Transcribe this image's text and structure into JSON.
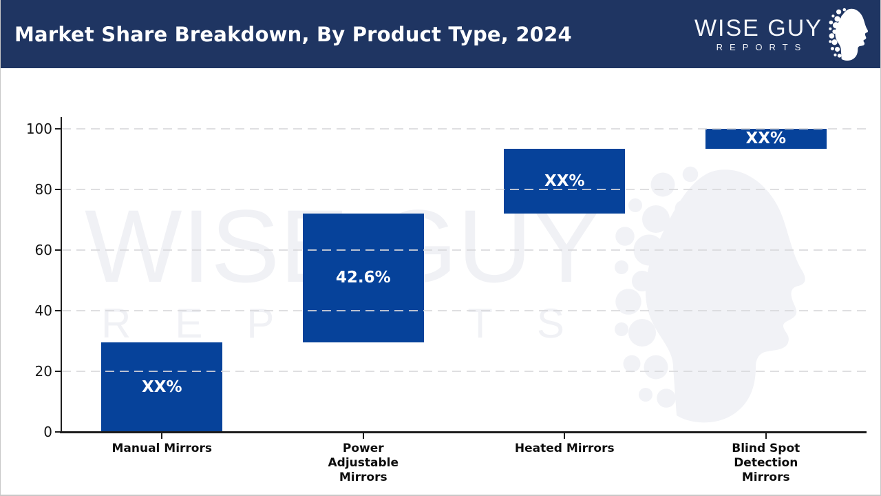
{
  "header": {
    "title": "Market Share Breakdown, By Product Type, 2024",
    "background_color": "#1f3562",
    "logo": {
      "wordmark": "WISE GUY",
      "subtitle": "REPORTS",
      "face_icon": "dotted-head-profile"
    }
  },
  "watermark": {
    "line1": "WISE GUY",
    "line2": "REPORTS",
    "face_icon": "dotted-head-profile",
    "color": "#f0f1f5"
  },
  "chart_data": {
    "type": "bar",
    "subtype": "floating-waterfall",
    "title": "Market Share Breakdown, By Product Type, 2024",
    "xlabel": "",
    "ylabel": "",
    "categories": [
      "Manual Mirrors",
      "Power Adjustable Mirrors",
      "Heated Mirrors",
      "Blind Spot Detection Mirrors"
    ],
    "segments": [
      {
        "category": "Manual Mirrors",
        "start": 0,
        "end": 29.5,
        "label": "XX%"
      },
      {
        "category": "Power Adjustable Mirrors",
        "start": 29.5,
        "end": 72.1,
        "label": "42.6%",
        "value": 42.6
      },
      {
        "category": "Heated Mirrors",
        "start": 72.1,
        "end": 93.3,
        "label": "XX%"
      },
      {
        "category": "Blind Spot Detection Mirrors",
        "start": 93.3,
        "end": 100,
        "label": "XX%"
      }
    ],
    "y_ticks": [
      0,
      20,
      40,
      60,
      80,
      100
    ],
    "ylim": [
      0,
      104
    ],
    "bar_color": "#06429a",
    "label_color": "#ffffff",
    "grid": true,
    "grid_style": "dashed",
    "legend_position": "none"
  }
}
